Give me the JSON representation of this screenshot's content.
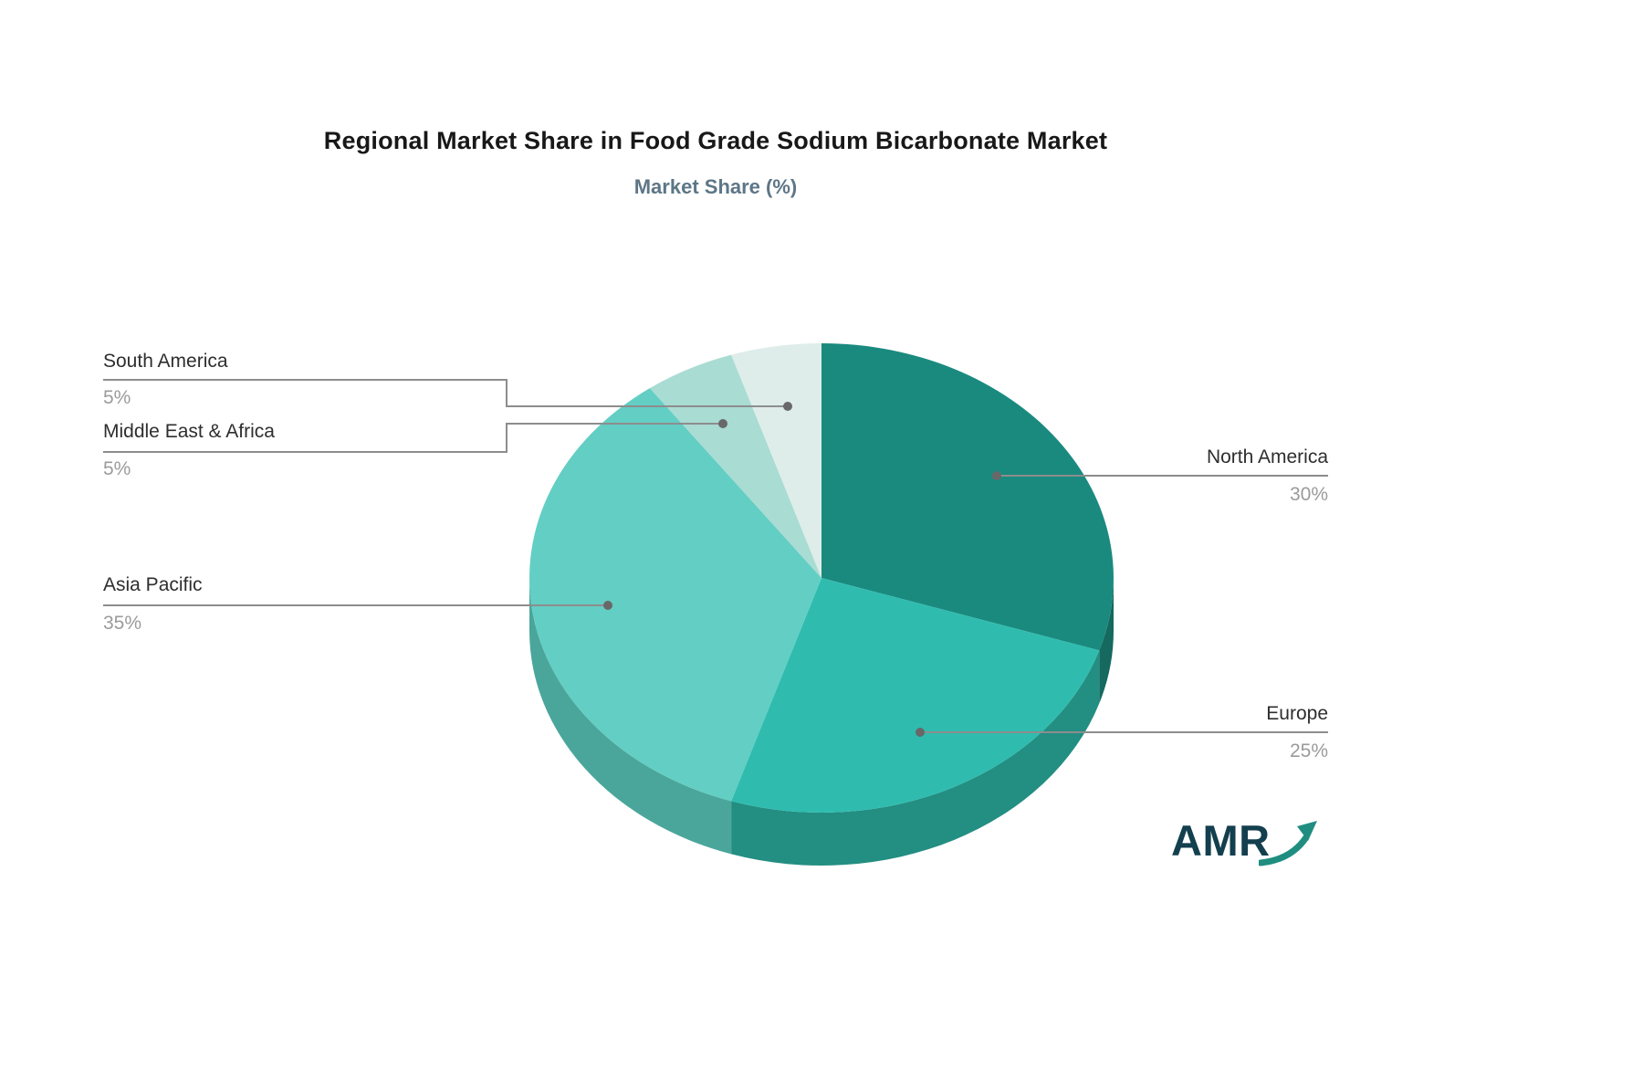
{
  "header": {
    "title": "Regional Market Share in Food Grade Sodium Bicarbonate Market",
    "subtitle": "Market Share (%)"
  },
  "chart_data": {
    "type": "pie",
    "title": "Regional Market Share in Food Grade Sodium Bicarbonate Market",
    "subtitle": "Market Share (%)",
    "unit": "%",
    "effect": "3d",
    "start_angle": "12-oclock",
    "direction": "clockwise",
    "legend_position": "none",
    "label_style": "callout-leader-lines-with-dots",
    "slices": [
      {
        "name": "North America",
        "value": 30,
        "pct_label": "30%",
        "color": "#1a8a7f",
        "side_color": "#15695f"
      },
      {
        "name": "Europe",
        "value": 25,
        "pct_label": "25%",
        "color": "#2fbcaf",
        "side_color": "#238e82"
      },
      {
        "name": "Asia Pacific",
        "value": 35,
        "pct_label": "35%",
        "color": "#63cec4",
        "side_color": "#4aa69b"
      },
      {
        "name": "Middle East & Africa",
        "value": 5,
        "pct_label": "5%",
        "color": "#a9dcd3",
        "side_color": "#86b2a9"
      },
      {
        "name": "South America",
        "value": 5,
        "pct_label": "5%",
        "color": "#deede9",
        "side_color": "#b4c7c2"
      }
    ],
    "line_color": "#8d8d8d",
    "dot_color": "#686868"
  },
  "branding": {
    "logo_text": "AMR",
    "logo_color": "#133f4e",
    "arrow_color": "#1f8e80"
  }
}
